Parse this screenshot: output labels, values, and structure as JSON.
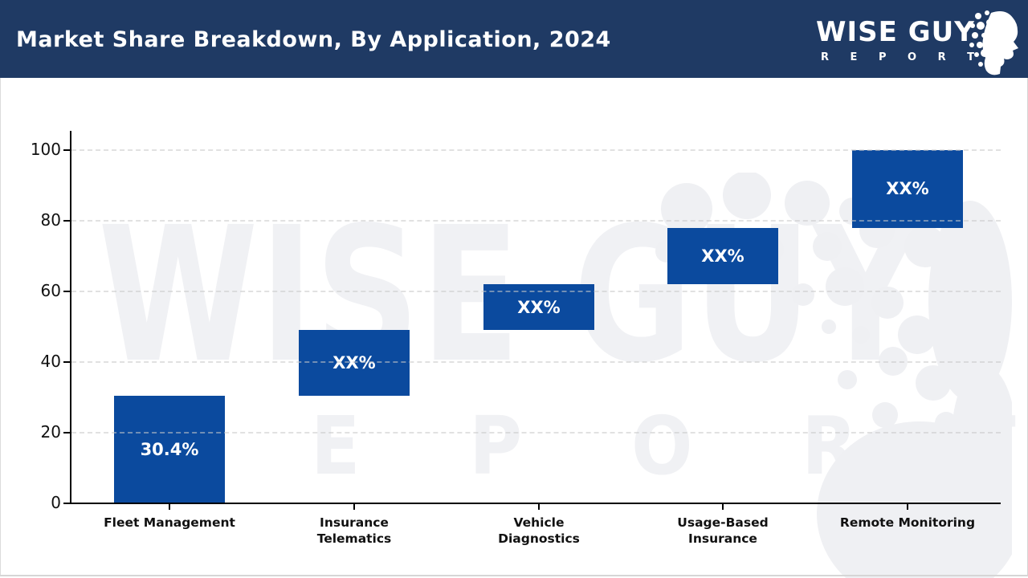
{
  "header": {
    "title": "Market Share Breakdown, By Application, 2024",
    "logo": {
      "brand": "WISE GUY",
      "tagline": "R E P O R T S"
    }
  },
  "watermark": {
    "brand": "WISE GUY",
    "tagline": "R E P O R T S"
  },
  "chart_data": {
    "type": "bar",
    "subtype": "waterfall",
    "title": "Market Share Breakdown, By Application, 2024",
    "xlabel": "",
    "ylabel": "",
    "ylim": [
      0,
      105
    ],
    "yticks": [
      0,
      20,
      40,
      60,
      80,
      100
    ],
    "grid": "horizontal-dashed",
    "legend": "none",
    "categories": [
      "Fleet Management",
      "Insurance\nTelematics",
      "Vehicle\nDiagnostics",
      "Usage-Based\nInsurance",
      "Remote Monitoring"
    ],
    "bars": [
      {
        "category": "Fleet Management",
        "start": 0,
        "end": 30.4,
        "label": "30.4%"
      },
      {
        "category": "Insurance Telematics",
        "start": 30.4,
        "end": 49,
        "label": "XX%"
      },
      {
        "category": "Vehicle Diagnostics",
        "start": 49,
        "end": 62,
        "label": "XX%"
      },
      {
        "category": "Usage-Based Insurance",
        "start": 62,
        "end": 78,
        "label": "XX%"
      },
      {
        "category": "Remote Monitoring",
        "start": 78,
        "end": 100,
        "label": "XX%"
      }
    ]
  },
  "colors": {
    "header_bg": "#1f3a64",
    "bar": "#0b4a9e",
    "bar_label": "#ffffff",
    "axis": "#000000",
    "grid": "#c8c8c8",
    "watermark": "#f0f1f4",
    "border": "#d6d6d6"
  }
}
